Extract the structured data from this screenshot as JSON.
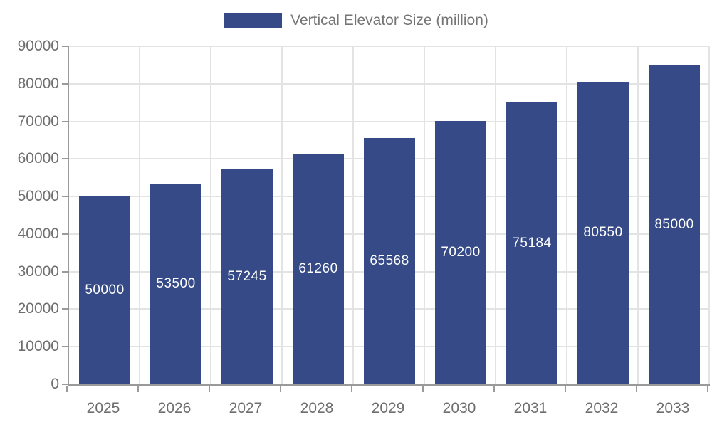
{
  "chart_data": {
    "type": "bar",
    "title": "",
    "legend_label": "Vertical Elevator Size (million)",
    "categories": [
      "2025",
      "2026",
      "2027",
      "2028",
      "2029",
      "2030",
      "2031",
      "2032",
      "2033"
    ],
    "values": [
      50000,
      53500,
      57245,
      61260,
      65568,
      70200,
      75184,
      80550,
      85000
    ],
    "xlabel": "",
    "ylabel": "",
    "ylim": [
      0,
      90000
    ],
    "ytick_step": 10000,
    "yticks": [
      0,
      10000,
      20000,
      30000,
      40000,
      50000,
      60000,
      70000,
      80000,
      90000
    ],
    "grid": true,
    "legend_position": "top-center",
    "bar_label_position": "center-inside"
  },
  "colors": {
    "bar": "#354A87",
    "bar_label": "#ffffff",
    "grid": "#e3e3e3",
    "axis": "#9a9a9a",
    "tick_text": "#6e6e6e",
    "legend_text": "#757575",
    "background": "#ffffff"
  }
}
